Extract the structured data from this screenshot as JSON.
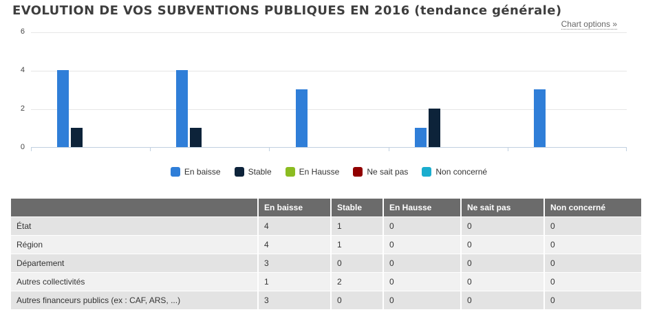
{
  "header": {
    "title": "EVOLUTION DE VOS SUBVENTIONS PUBLIQUES EN 2016 (tendance générale)",
    "chart_options_label": "Chart options »"
  },
  "chart_data": {
    "type": "bar",
    "title": "EVOLUTION DE VOS SUBVENTIONS PUBLIQUES EN 2016 (tendance générale)",
    "categories": [
      "État",
      "Région",
      "Département",
      "Autres collectivités",
      "Autres financeurs publics (ex : CAF, ARS, ...)"
    ],
    "series": [
      {
        "name": "En baisse",
        "color": "#2f7ed8",
        "values": [
          4,
          4,
          3,
          1,
          3
        ]
      },
      {
        "name": "Stable",
        "color": "#0d233a",
        "values": [
          1,
          1,
          0,
          2,
          0
        ]
      },
      {
        "name": "En Hausse",
        "color": "#8bbc21",
        "values": [
          0,
          0,
          0,
          0,
          0
        ]
      },
      {
        "name": "Ne sait pas",
        "color": "#910000",
        "values": [
          0,
          0,
          0,
          0,
          0
        ]
      },
      {
        "name": "Non concerné",
        "color": "#1aadce",
        "values": [
          0,
          0,
          0,
          0,
          0
        ]
      }
    ],
    "xlabel": "",
    "ylabel": "",
    "ylim": [
      0,
      6
    ],
    "yticks": [
      0,
      2,
      4,
      6
    ],
    "grid": true,
    "legend_position": "bottom",
    "gridline_color": "#e6e6e6",
    "axis_line_color": "#c0d0e0"
  },
  "table": {
    "headers": [
      "",
      "En baisse",
      "Stable",
      "En Hausse",
      "Ne sait pas",
      "Non concerné"
    ],
    "rows": [
      {
        "label": "État",
        "values": [
          "4",
          "1",
          "0",
          "0",
          "0"
        ]
      },
      {
        "label": "Région",
        "values": [
          "4",
          "1",
          "0",
          "0",
          "0"
        ]
      },
      {
        "label": "Département",
        "values": [
          "3",
          "0",
          "0",
          "0",
          "0"
        ]
      },
      {
        "label": "Autres collectivités",
        "values": [
          "1",
          "2",
          "0",
          "0",
          "0"
        ]
      },
      {
        "label": "Autres financeurs publics (ex : CAF, ARS, ...)",
        "values": [
          "3",
          "0",
          "0",
          "0",
          "0"
        ]
      }
    ]
  }
}
